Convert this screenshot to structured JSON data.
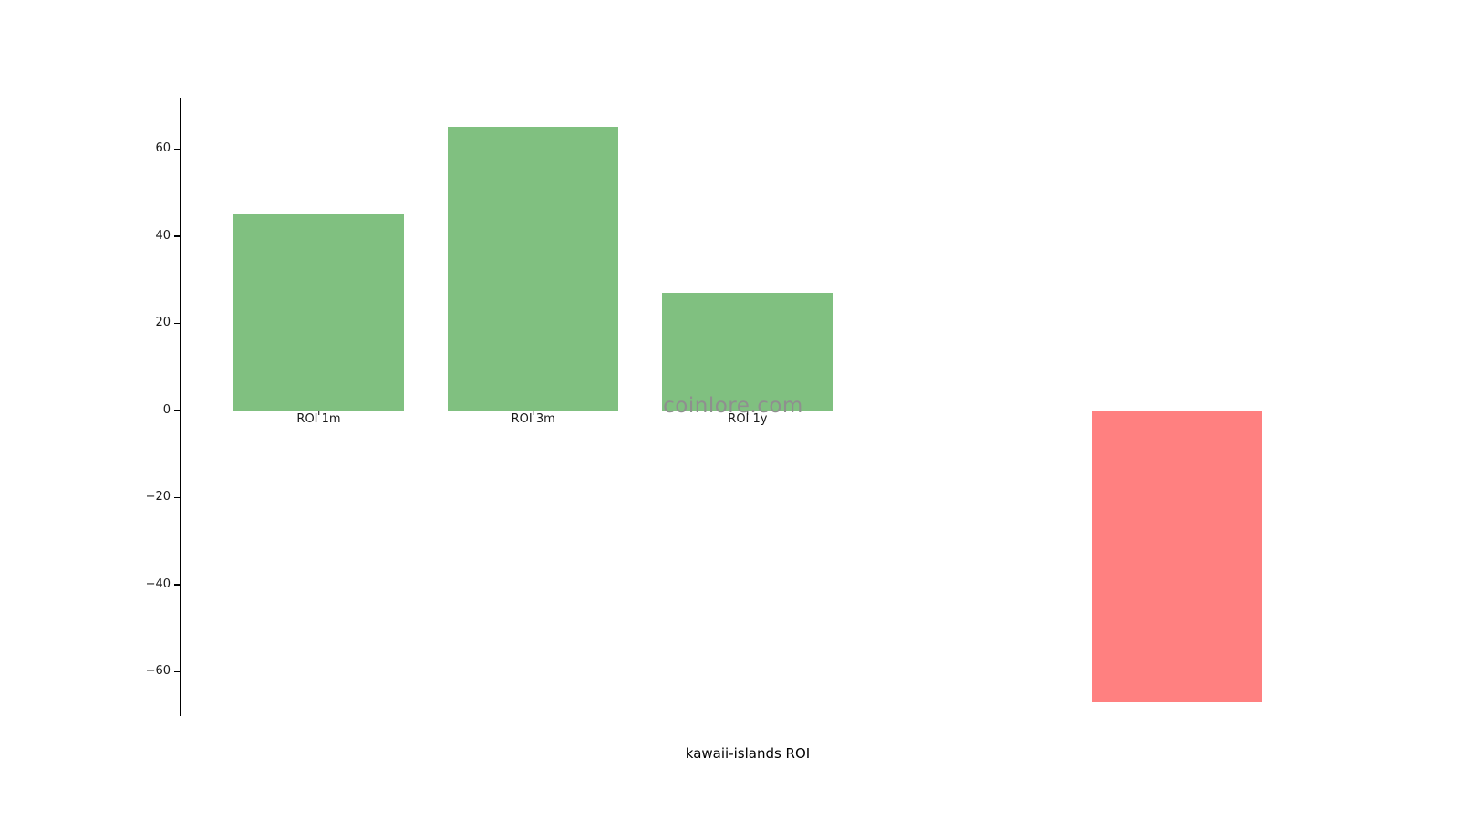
{
  "page": {
    "background": "#ffffff"
  },
  "watermark": {
    "text": "coinlore.com",
    "color": "#8f8f8f"
  },
  "axis": {
    "line_color": "#000000",
    "tick_label_color": "#1a1a1a"
  },
  "chart_data": {
    "type": "bar",
    "title": "",
    "xlabel": "kawaii-islands ROI",
    "ylabel": "",
    "categories": [
      "ROI 1m",
      "ROI 3m",
      "ROI 1y",
      "",
      ""
    ],
    "values": [
      45,
      65,
      27,
      0,
      -67
    ],
    "positive_color": "#80c080",
    "negative_color": "#ff8080",
    "ylim": [
      -70.2,
      71.8
    ],
    "yticks": [
      60,
      40,
      20,
      0,
      -20,
      -40,
      -60
    ],
    "ytick_labels": [
      "60",
      "40",
      "20",
      "0",
      "−20",
      "−40",
      "−60"
    ],
    "grid": false,
    "legend": false
  }
}
